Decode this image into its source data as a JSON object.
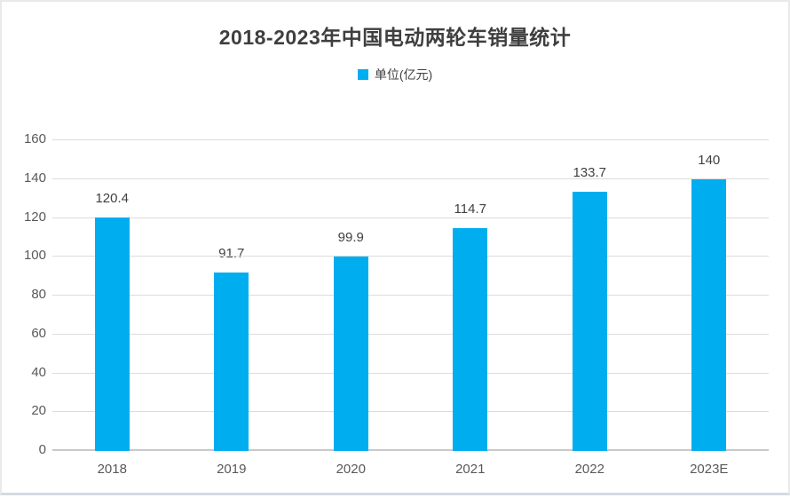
{
  "chart_data": {
    "type": "bar",
    "title": "2018-2023年中国电动两轮车销量统计",
    "legend_label": "单位(亿元)",
    "legend_position": "top",
    "categories": [
      "2018",
      "2019",
      "2020",
      "2021",
      "2022",
      "2023E"
    ],
    "values": [
      120.4,
      91.7,
      99.9,
      114.7,
      133.7,
      140
    ],
    "value_labels": [
      "120.4",
      "91.7",
      "99.9",
      "114.7",
      "133.7",
      "140"
    ],
    "ylim": [
      0,
      160
    ],
    "yticks": [
      0,
      20,
      40,
      60,
      80,
      100,
      120,
      140,
      160
    ],
    "grid": "horizontal",
    "bar_color": "#00AEF0",
    "gridline_color": "#dcdcdc",
    "axis_line_color": "#c9c9c9",
    "title_color": "#3f3f3f",
    "tick_label_color": "#595959",
    "value_label_color": "#404040"
  }
}
